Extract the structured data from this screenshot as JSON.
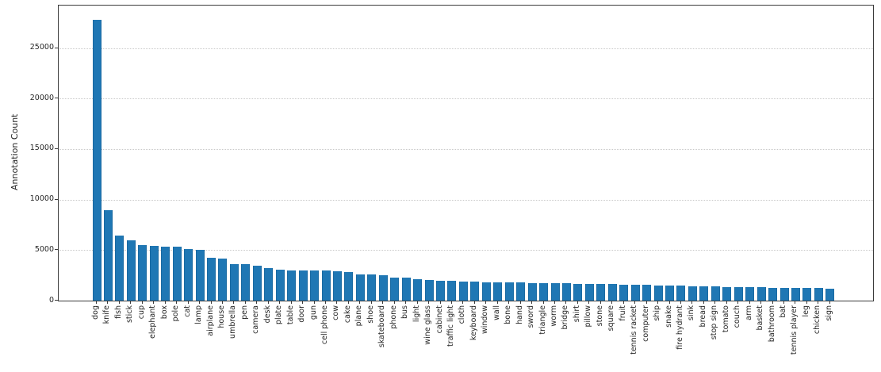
{
  "chart_data": {
    "type": "bar",
    "title": "",
    "xlabel": "",
    "ylabel": "Annotation Count",
    "ylim": [
      0,
      29200
    ],
    "yticks": [
      0,
      5000,
      10000,
      15000,
      20000,
      25000
    ],
    "grid": "horizontal dotted gridlines at y ticks",
    "legend_position": "none",
    "bar_color": "#1f77b4",
    "categories": [
      "dog",
      "knife",
      "fish",
      "stick",
      "cup",
      "elephant",
      "box",
      "pole",
      "cat",
      "lamp",
      "airplane",
      "house",
      "umbrella",
      "pen",
      "camera",
      "desk",
      "plate",
      "table",
      "door",
      "gun",
      "cell phone",
      "cow",
      "cake",
      "plane",
      "shoe",
      "skateboard",
      "phone",
      "bus",
      "light",
      "wine glass",
      "cabinet",
      "traffic light",
      "cloth",
      "keyboard",
      "window",
      "wall",
      "bone",
      "hand",
      "sword",
      "triangle",
      "worm",
      "bridge",
      "shirt",
      "pillow",
      "stone",
      "square",
      "fruit",
      "tennis racket",
      "computer",
      "ship",
      "snake",
      "fire hydrant",
      "sink",
      "bread",
      "stop sign",
      "tomato",
      "couch",
      "arm",
      "basket",
      "bathroom",
      "bat",
      "tennis player",
      "leg",
      "chicken",
      "sign"
    ],
    "values": [
      27750,
      8950,
      6400,
      5950,
      5500,
      5450,
      5320,
      5300,
      5100,
      5050,
      4250,
      4150,
      3650,
      3600,
      3450,
      3220,
      3100,
      3020,
      3000,
      2990,
      2960,
      2900,
      2830,
      2610,
      2570,
      2530,
      2290,
      2260,
      2100,
      2010,
      1990,
      1940,
      1890,
      1850,
      1840,
      1810,
      1790,
      1770,
      1750,
      1730,
      1710,
      1690,
      1670,
      1650,
      1630,
      1610,
      1590,
      1570,
      1550,
      1520,
      1500,
      1470,
      1440,
      1410,
      1380,
      1360,
      1340,
      1320,
      1300,
      1285,
      1270,
      1255,
      1240,
      1220,
      1210
    ]
  },
  "colors": {
    "bar": "#1f77b4",
    "grid": "#c9c9c9",
    "spine": "#3a3a3a",
    "text": "#262626",
    "background": "#ffffff"
  }
}
